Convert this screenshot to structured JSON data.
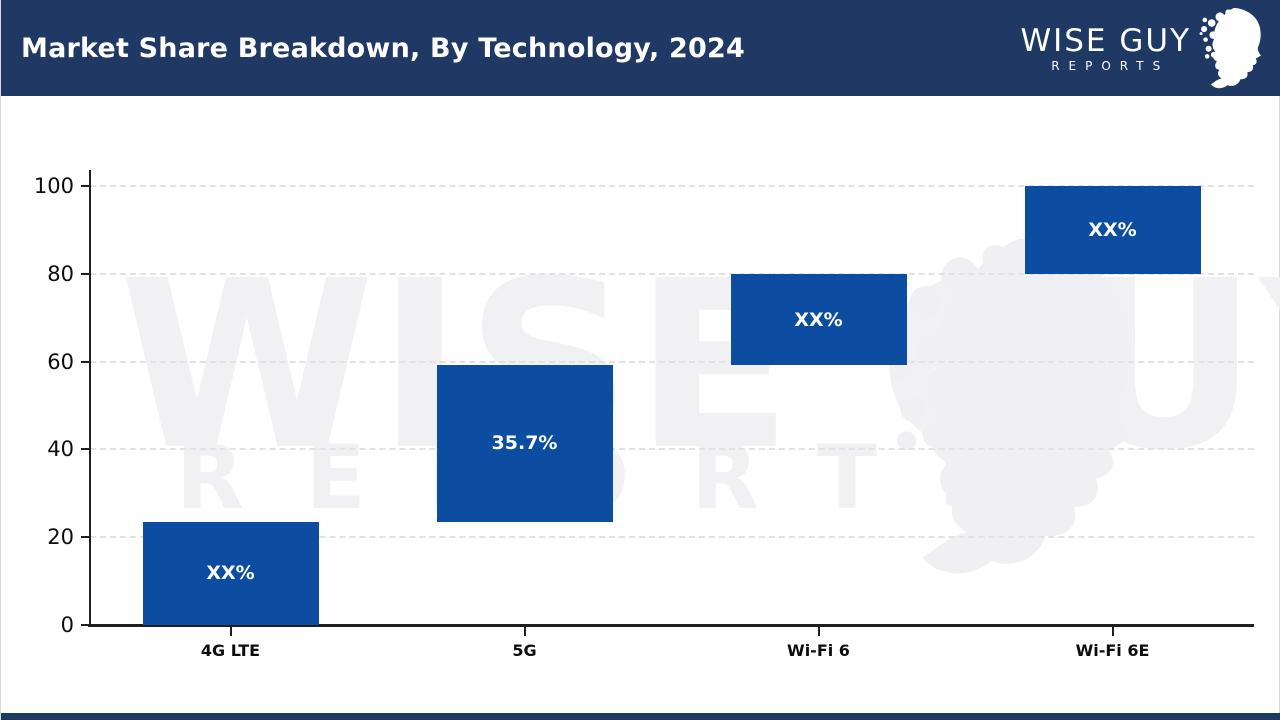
{
  "header": {
    "title": "Market Share Breakdown, By Technology, 2024",
    "logo": {
      "line1": "WISE GUY",
      "line2": "REPORTS"
    }
  },
  "watermark": {
    "line1": "WISE GUY",
    "line2": "REPORTS"
  },
  "colors": {
    "header_bg": "#203864",
    "footer_bg": "#203864",
    "bar": "#0c4da2",
    "grid": "#e2e2e3",
    "spine": "#1f1f1f",
    "watermark": "#f1f1f3",
    "title_text": "#ffffff",
    "bar_label_text": "#ffffff"
  },
  "chart_data": {
    "type": "bar",
    "subtype": "waterfall",
    "title": "Market Share Breakdown, By Technology, 2024",
    "xlabel": "",
    "ylabel": "",
    "ylim": [
      0,
      100
    ],
    "yticks": [
      0,
      20,
      40,
      60,
      80,
      100
    ],
    "grid": "dashed-horizontal",
    "legend": "none",
    "categories": [
      "4G LTE",
      "5G",
      "Wi-Fi 6",
      "Wi-Fi 6E"
    ],
    "bars": [
      {
        "category": "4G LTE",
        "start": 0,
        "end": 23.5,
        "value_label": "XX%"
      },
      {
        "category": "5G",
        "start": 23.5,
        "end": 59.2,
        "value_label": "35.7%"
      },
      {
        "category": "Wi-Fi 6",
        "start": 59.2,
        "end": 79.9,
        "value_label": "XX%"
      },
      {
        "category": "Wi-Fi 6E",
        "start": 79.9,
        "end": 100,
        "value_label": "XX%"
      }
    ]
  }
}
